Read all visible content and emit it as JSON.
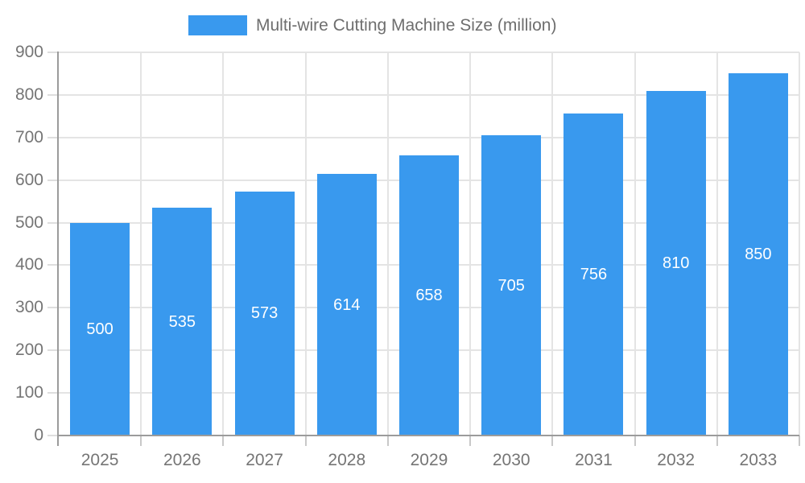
{
  "legend": {
    "label": "Multi-wire Cutting Machine Size (million)"
  },
  "chart_data": {
    "type": "bar",
    "title": "Multi-wire Cutting Machine Size (million)",
    "series_name": "Multi-wire Cutting Machine Size (million)",
    "categories": [
      "2025",
      "2026",
      "2027",
      "2028",
      "2029",
      "2030",
      "2031",
      "2032",
      "2033"
    ],
    "values": [
      500,
      535,
      573,
      614,
      658,
      705,
      756,
      810,
      850
    ],
    "bar_labels": [
      "500",
      "535",
      "573",
      "614",
      "658",
      "705",
      "756",
      "810",
      "850"
    ],
    "xlabel": "",
    "ylabel": "",
    "ylim": [
      0,
      900
    ],
    "ytick_step": 100,
    "yticks": [
      0,
      100,
      200,
      300,
      400,
      500,
      600,
      700,
      800,
      900
    ],
    "grid": true,
    "legend_position": "top",
    "colors": {
      "bar": "#3999ee",
      "bar_label": "#ffffff",
      "axis_line": "#9b9b9b",
      "gridline": "#e4e4e4",
      "tick_light": "#dedede",
      "tick_bottom": "#c8c8c8",
      "axis_text": "#757575",
      "legend_text": "#6e6e6e",
      "background": "#ffffff"
    }
  }
}
